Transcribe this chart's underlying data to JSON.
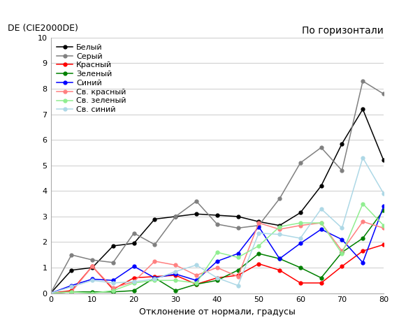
{
  "title": "По горизонтали",
  "ylabel": "DE (CIE2000DE)",
  "xlabel": "Отклонение от нормали, градусы",
  "xlim": [
    0,
    80
  ],
  "ylim": [
    0,
    10
  ],
  "yticks": [
    0,
    1,
    2,
    3,
    4,
    5,
    6,
    7,
    8,
    9,
    10
  ],
  "xticks": [
    0,
    10,
    20,
    30,
    40,
    50,
    60,
    70,
    80
  ],
  "series": [
    {
      "label": "Белый",
      "color": "#000000",
      "x": [
        0,
        5,
        10,
        15,
        20,
        25,
        30,
        35,
        40,
        45,
        50,
        55,
        60,
        65,
        70,
        75,
        80
      ],
      "y": [
        0.0,
        0.9,
        1.0,
        1.85,
        1.95,
        2.9,
        3.0,
        3.1,
        3.05,
        3.0,
        2.8,
        2.65,
        3.15,
        4.2,
        5.85,
        7.2,
        5.2
      ]
    },
    {
      "label": "Серый",
      "color": "#808080",
      "x": [
        0,
        5,
        10,
        15,
        20,
        25,
        30,
        35,
        40,
        45,
        50,
        55,
        60,
        65,
        70,
        75,
        80
      ],
      "y": [
        0.0,
        1.5,
        1.3,
        1.2,
        2.35,
        1.9,
        3.0,
        3.6,
        2.7,
        2.55,
        2.65,
        3.7,
        5.1,
        5.7,
        4.8,
        8.3,
        7.8
      ]
    },
    {
      "label": "Красный",
      "color": "#ff0000",
      "x": [
        0,
        5,
        10,
        15,
        20,
        25,
        30,
        35,
        40,
        45,
        50,
        55,
        60,
        65,
        70,
        75,
        80
      ],
      "y": [
        0.0,
        0.1,
        1.05,
        0.15,
        0.6,
        0.65,
        0.7,
        0.35,
        0.6,
        0.7,
        1.15,
        0.9,
        0.4,
        0.4,
        1.05,
        1.65,
        1.9
      ]
    },
    {
      "label": "Зеленый",
      "color": "#008000",
      "x": [
        0,
        5,
        10,
        15,
        20,
        25,
        30,
        35,
        40,
        45,
        50,
        55,
        60,
        65,
        70,
        75,
        80
      ],
      "y": [
        0.0,
        0.05,
        0.05,
        0.05,
        0.1,
        0.6,
        0.1,
        0.35,
        0.5,
        0.9,
        1.55,
        1.35,
        1.0,
        0.6,
        1.6,
        2.15,
        3.25
      ]
    },
    {
      "label": "Синий",
      "color": "#0000ff",
      "x": [
        0,
        5,
        10,
        15,
        20,
        25,
        30,
        35,
        40,
        45,
        50,
        55,
        60,
        65,
        70,
        75,
        80
      ],
      "y": [
        0.0,
        0.3,
        0.55,
        0.5,
        1.05,
        0.6,
        0.75,
        0.5,
        1.25,
        1.55,
        2.6,
        1.35,
        1.95,
        2.5,
        2.1,
        1.2,
        3.4
      ]
    },
    {
      "label": "Св. красный",
      "color": "#ff8080",
      "x": [
        0,
        5,
        10,
        15,
        20,
        25,
        30,
        35,
        40,
        45,
        50,
        55,
        60,
        65,
        70,
        75,
        80
      ],
      "y": [
        0.0,
        0.05,
        1.05,
        0.2,
        0.45,
        1.25,
        1.1,
        0.7,
        1.0,
        0.65,
        2.75,
        2.5,
        2.65,
        2.75,
        1.65,
        2.8,
        2.55
      ]
    },
    {
      "label": "Св. зеленый",
      "color": "#90ee90",
      "x": [
        0,
        5,
        10,
        15,
        20,
        25,
        30,
        35,
        40,
        45,
        50,
        55,
        60,
        65,
        70,
        75,
        80
      ],
      "y": [
        0.0,
        0.05,
        0.0,
        0.1,
        0.4,
        0.5,
        0.5,
        0.4,
        1.6,
        1.4,
        1.85,
        2.6,
        2.75,
        2.75,
        1.55,
        3.5,
        2.65
      ]
    },
    {
      "label": "Св. синий",
      "color": "#add8e6",
      "x": [
        0,
        5,
        10,
        15,
        20,
        25,
        30,
        35,
        40,
        45,
        50,
        55,
        60,
        65,
        70,
        75,
        80
      ],
      "y": [
        0.0,
        0.25,
        0.5,
        0.4,
        0.45,
        0.55,
        0.85,
        1.1,
        0.6,
        0.3,
        2.35,
        2.3,
        2.15,
        3.3,
        2.55,
        5.3,
        3.9
      ]
    }
  ]
}
